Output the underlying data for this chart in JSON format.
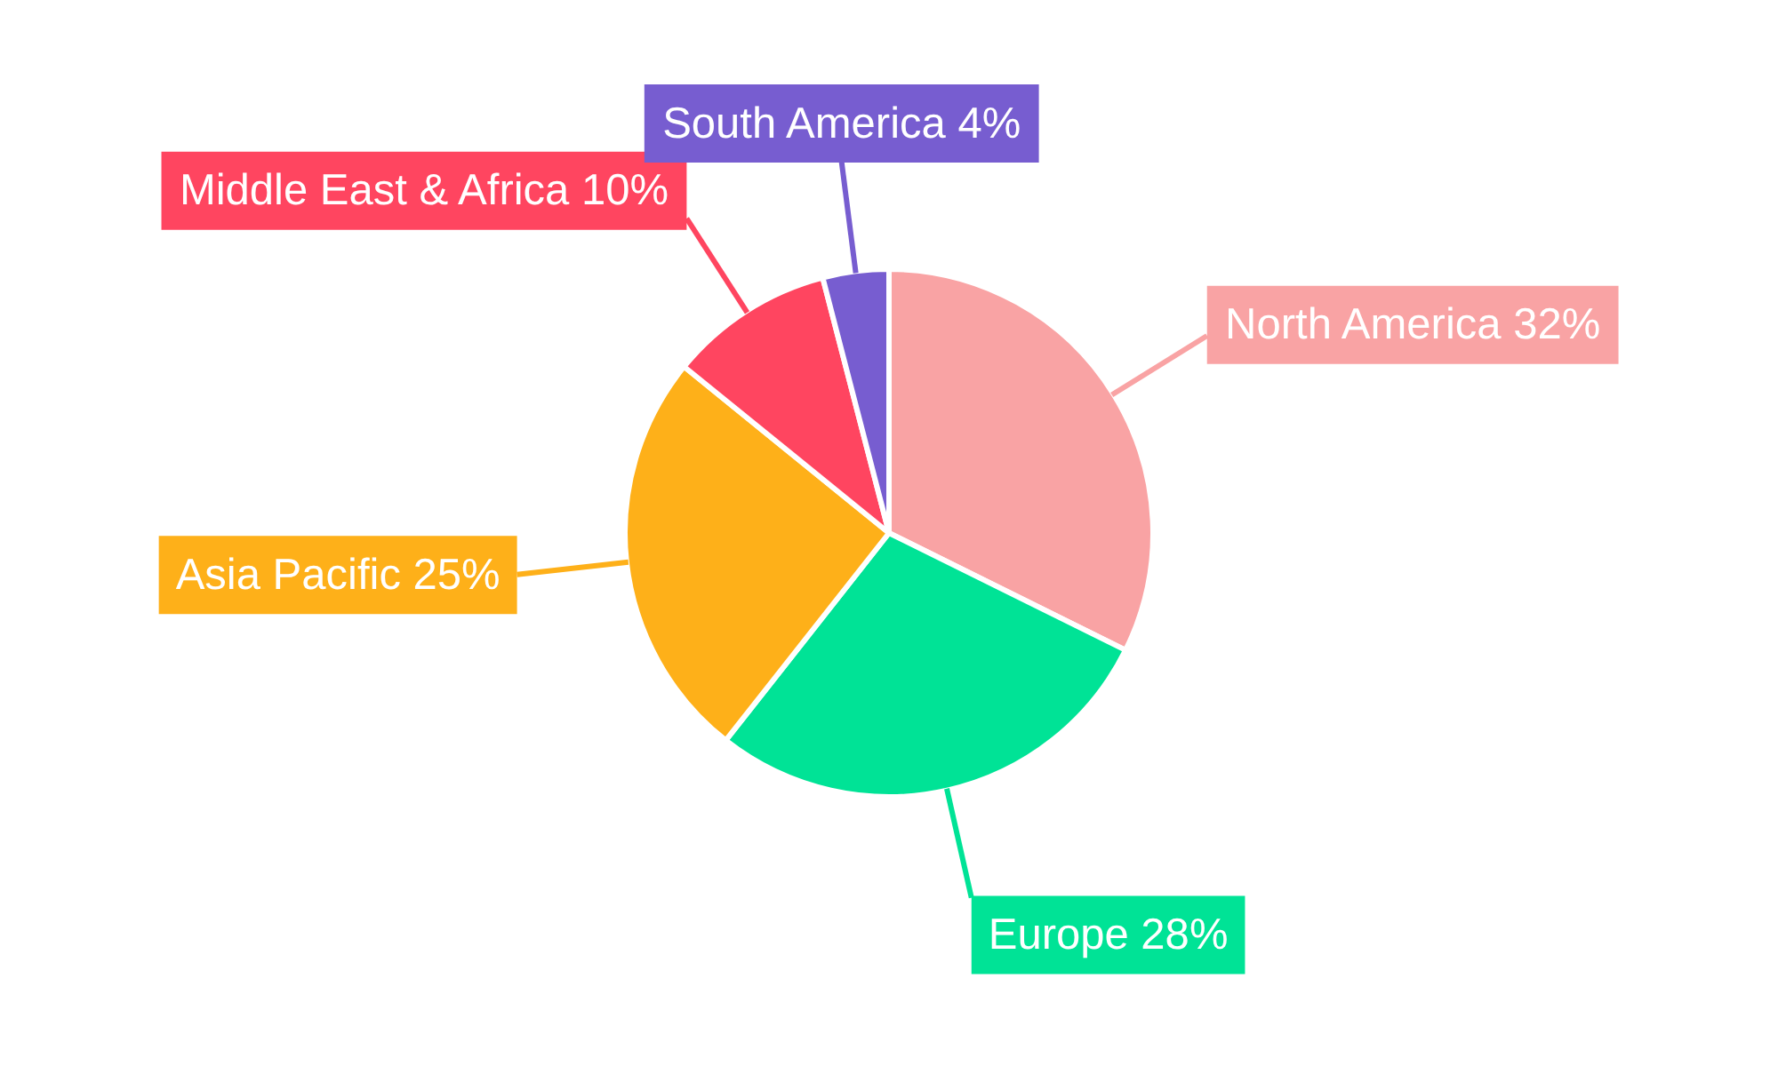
{
  "chart_data": {
    "type": "pie",
    "categories": [
      "North America",
      "Europe",
      "Asia Pacific",
      "Middle East & Africa",
      "South America"
    ],
    "values": [
      32,
      28,
      25,
      10,
      4
    ],
    "colors": [
      "#f9a3a4",
      "#00e396",
      "#feb019",
      "#ff4560",
      "#775dd0"
    ],
    "value_labels": [
      "32%",
      "28%",
      "25%",
      "10%",
      "4%"
    ],
    "legend": false
  }
}
